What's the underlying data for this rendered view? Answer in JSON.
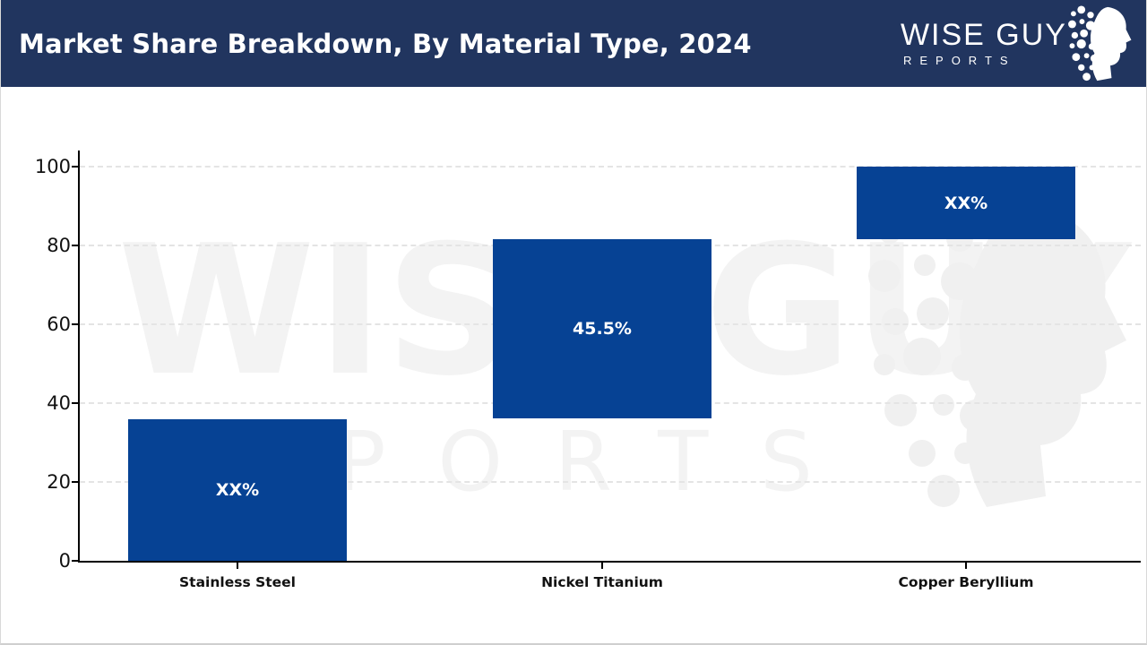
{
  "header": {
    "title": "Market Share Breakdown, By Material Type, 2024",
    "bg_color": "#21355F",
    "logo": {
      "line1": "WISE GUY",
      "line2": "REPORTS"
    }
  },
  "watermark": {
    "line1": "WISE GUY",
    "line2": "REPORTS"
  },
  "chart_data": {
    "type": "bar",
    "subtype": "floating-waterfall",
    "title": "Market Share Breakdown, By Material Type, 2024",
    "categories": [
      "Stainless Steel",
      "Nickel Titanium",
      "Copper Beryllium"
    ],
    "segments": [
      {
        "category": "Stainless Steel",
        "start": 0,
        "end": 36,
        "label": "XX%"
      },
      {
        "category": "Nickel Titanium",
        "start": 36,
        "end": 81.5,
        "label": "45.5%"
      },
      {
        "category": "Copper Beryllium",
        "start": 81.5,
        "end": 100,
        "label": "XX%"
      }
    ],
    "yticks": [
      0,
      20,
      40,
      60,
      80,
      100
    ],
    "ylim": [
      0,
      100
    ],
    "xlabel": "",
    "ylabel": "",
    "grid": "horizontal-dashed",
    "legend": "none",
    "bar_color": "#064294",
    "bar_label_color": "#ffffff"
  }
}
